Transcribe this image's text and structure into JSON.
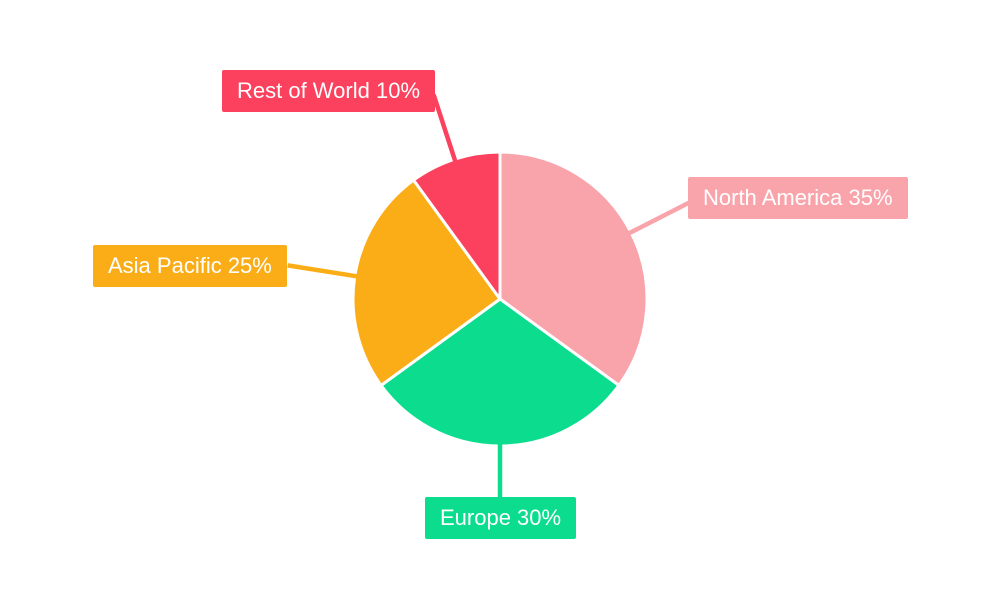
{
  "page": {
    "background_color": "#ffffff",
    "text_color_on_labels": "#ffffff"
  },
  "chart_data": {
    "type": "pie",
    "unit": "%",
    "categories": [
      "North America",
      "Europe",
      "Asia Pacific",
      "Rest of World"
    ],
    "values": [
      35,
      30,
      25,
      10
    ],
    "slices": [
      {
        "name": "North America",
        "value": 35,
        "label": "North America 35%",
        "color": "#F9A3AB"
      },
      {
        "name": "Europe",
        "value": 30,
        "label": "Europe 30%",
        "color": "#0BDC8E"
      },
      {
        "name": "Asia Pacific",
        "value": 25,
        "label": "Asia Pacific 25%",
        "color": "#FBAD18"
      },
      {
        "name": "Rest of World",
        "value": 10,
        "label": "Rest of World 10%",
        "color": "#FB415D"
      }
    ],
    "start_angle_deg": 0,
    "direction": "clockwise",
    "slice_gap_color": "#ffffff",
    "label_style": "callout-boxes-with-leader-lines",
    "legend": "none",
    "title": ""
  }
}
